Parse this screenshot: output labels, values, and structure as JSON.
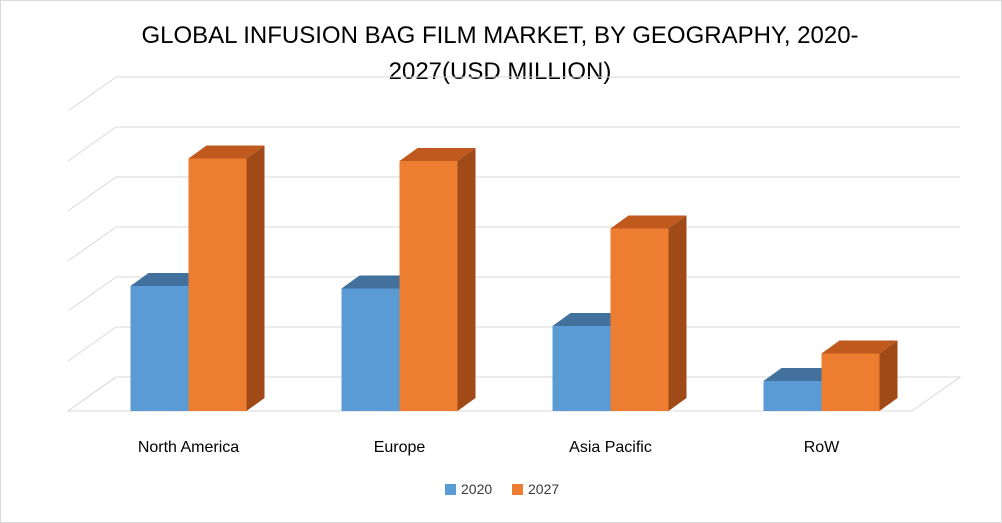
{
  "chart_data": {
    "type": "bar",
    "title_line1": "GLOBAL INFUSION BAG FILM  MARKET, BY GEOGRAPHY, 2020-",
    "title_line2": "2027(USD MILLION)",
    "categories": [
      "North America",
      "Europe",
      "Asia Pacific",
      "RoW"
    ],
    "series": [
      {
        "name": "2020",
        "values": [
          25,
          24.5,
          17,
          6
        ],
        "color": "#5b9bd5",
        "top": "#41719c",
        "side": "#2e5f8a"
      },
      {
        "name": "2027",
        "values": [
          50.5,
          50,
          36.5,
          11.5
        ],
        "color": "#ed7d31",
        "top": "#c0591d",
        "side": "#a04a18"
      }
    ],
    "ylim": [
      0,
      60
    ],
    "grid": true,
    "legend_position": "bottom"
  }
}
